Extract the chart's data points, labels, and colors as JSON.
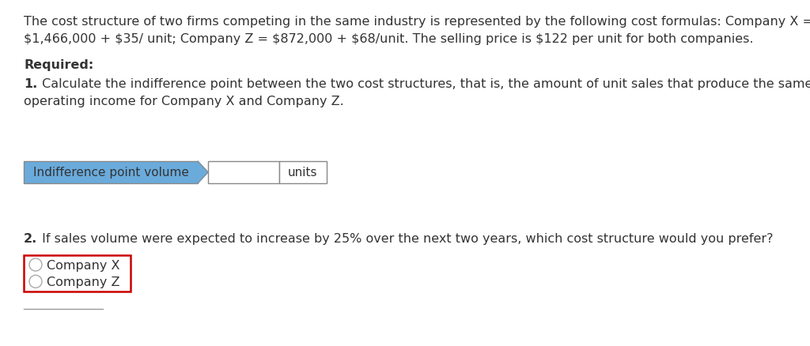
{
  "bg_color": "#ffffff",
  "text_color": "#333333",
  "font_size_body": 11.5,
  "paragraph1": "The cost structure of two firms competing in the same industry is represented by the following cost formulas: Company X =",
  "paragraph1_line2": "$1,466,000 + $35/ unit; Company Z = $872,000 + $68/unit. The selling price is $122 per unit for both companies.",
  "required_label": "Required:",
  "point1_bold": "1.",
  "point1_text": " Calculate the indifference point between the two cost structures, that is, the amount of unit sales that produce the same",
  "point1_line2": "operating income for Company X and Company Z.",
  "label_indifference": "Indifference point volume",
  "label_units": "units",
  "label_box_color": "#6aabdc",
  "label_box_text_color": "#333333",
  "input_box_color": "#ffffff",
  "input_box_border": "#888888",
  "point2_bold": "2.",
  "point2_text": " If sales volume were expected to increase by 25% over the next two years, which cost structure would you prefer?",
  "radio_option1": "Company X",
  "radio_option2": "Company Z",
  "radio_box_border": "#cc0000",
  "bottom_line_color": "#999999",
  "fig_w": 10.24,
  "fig_h": 4.39,
  "dpi": 100
}
